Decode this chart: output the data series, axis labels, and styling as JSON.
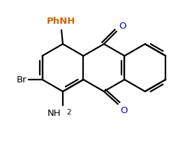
{
  "background": "#ffffff",
  "line_color": "#000000",
  "line_width": 1.6,
  "PhNH_color": "#cc6600",
  "O_color": "#0000cc",
  "label_PhNH": "PhNH",
  "label_Br": "Br",
  "label_NH": "NH",
  "label_2": "2",
  "label_O": "O"
}
